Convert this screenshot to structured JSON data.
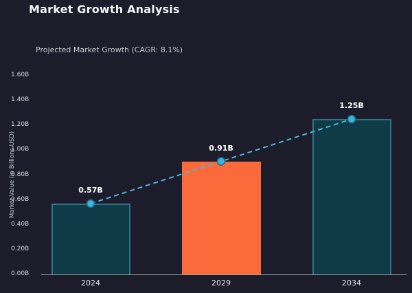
{
  "chart_data": {
    "type": "bar",
    "title": "Market Growth Analysis",
    "subtitle": "Projected Market Growth (CAGR: 8.1%)",
    "ylabel": "Market Value (in Billions USD)",
    "categories": [
      "2024",
      "2029",
      "2034"
    ],
    "values": [
      0.57,
      0.91,
      1.25
    ],
    "value_labels": [
      "0.57B",
      "0.91B",
      "1.25B"
    ],
    "ylim": [
      0,
      1.6
    ],
    "yticks": [
      0,
      0.2,
      0.4,
      0.6,
      0.8,
      1.0,
      1.2,
      1.4,
      1.6
    ],
    "ytick_labels": [
      "0.00B",
      "0.20B",
      "0.40B",
      "0.60B",
      "0.80B",
      "1.00B",
      "1.20B",
      "1.40B",
      "1.60B"
    ],
    "grid": false,
    "legend": false,
    "trend_line": true,
    "colors": {
      "background": "#1c1c2b",
      "bar_fills": [
        "#0e3b45",
        "#fb6a3a",
        "#0e3b45"
      ],
      "bar_borders": [
        "#2f7486",
        "#fb6a3a",
        "#2f7486"
      ],
      "trend": "#4ab8dc",
      "marker_fill": "#3db3d8",
      "marker_stroke": "#1c6e8c",
      "title_text": "#f5f5f7",
      "subtitle_text": "#c9c9ce",
      "tick_text": "#d6d6dc",
      "axis_line": "#9aa0a6"
    }
  }
}
